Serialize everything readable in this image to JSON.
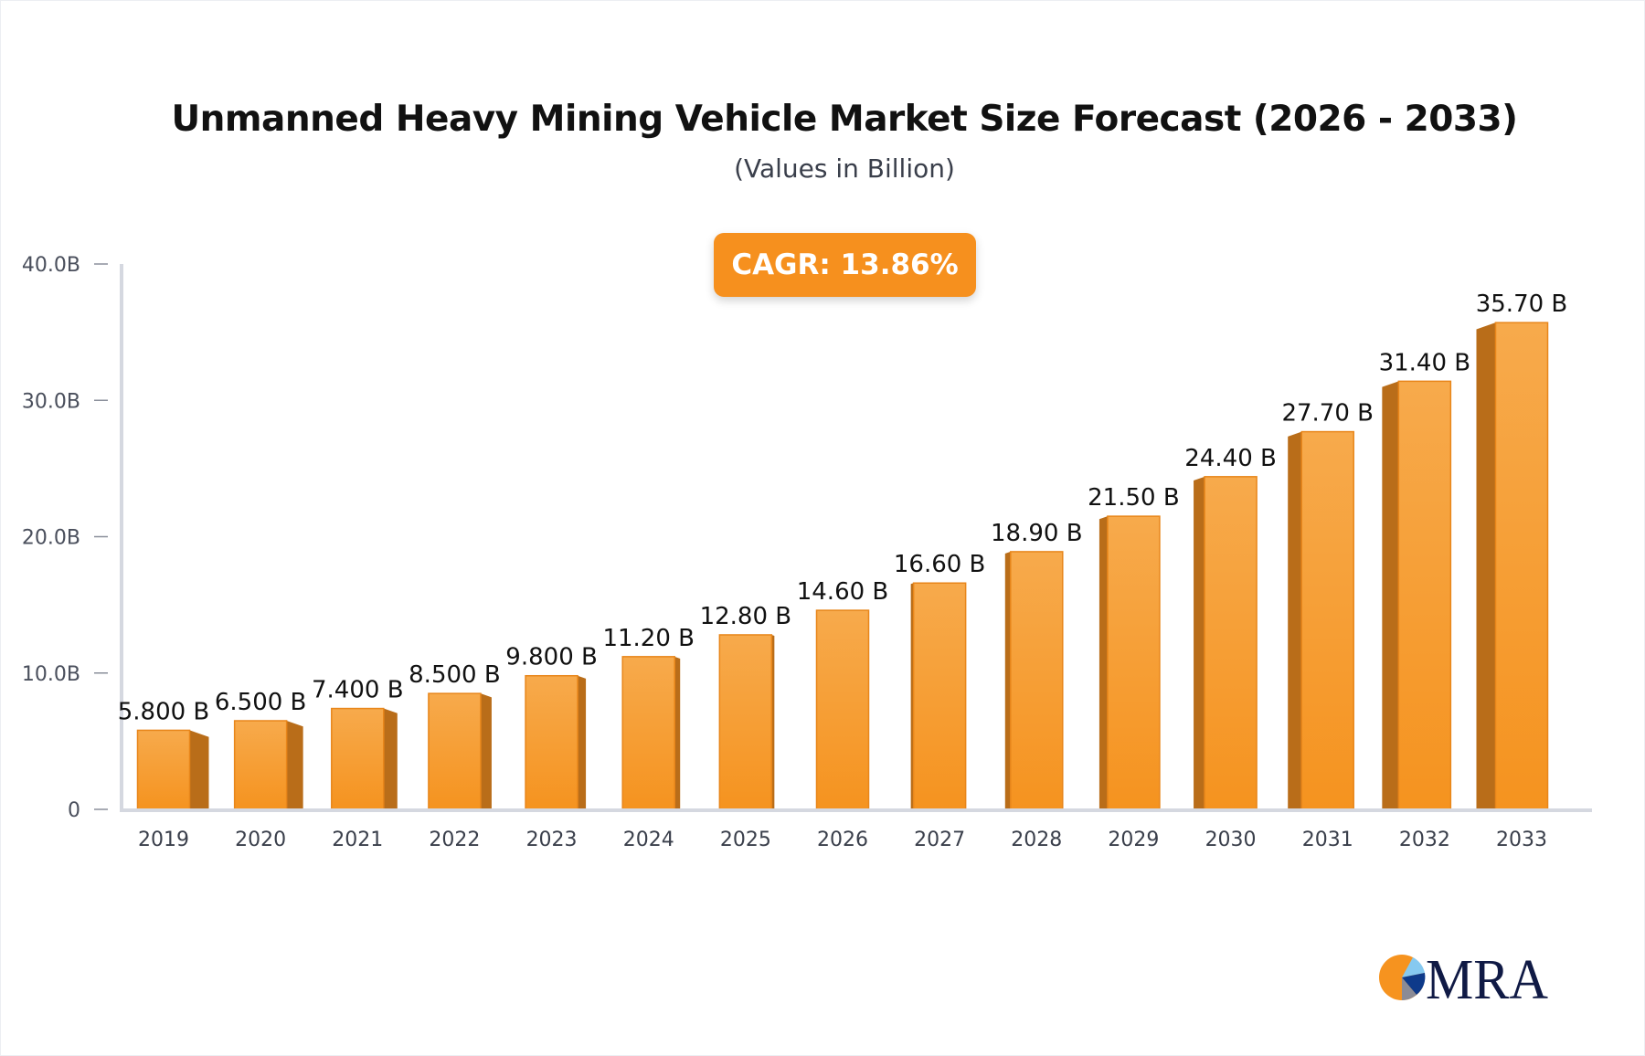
{
  "chart_data": {
    "type": "bar",
    "title": "Unmanned Heavy Mining Vehicle Market Size Forecast (2026 - 2033)",
    "subtitle": "(Values in Billion)",
    "annotation": "CAGR: 13.86%",
    "categories": [
      "2019",
      "2020",
      "2021",
      "2022",
      "2023",
      "2024",
      "2025",
      "2026",
      "2027",
      "2028",
      "2029",
      "2030",
      "2031",
      "2032",
      "2033"
    ],
    "values": [
      5.8,
      6.5,
      7.4,
      8.5,
      9.8,
      11.2,
      12.8,
      14.6,
      16.6,
      18.9,
      21.5,
      24.4,
      27.7,
      31.4,
      35.7
    ],
    "data_labels": [
      "5.800 B",
      "6.500 B",
      "7.400 B",
      "8.500 B",
      "9.800 B",
      "11.20 B",
      "12.80 B",
      "14.60 B",
      "16.60 B",
      "18.90 B",
      "21.50 B",
      "24.40 B",
      "27.70 B",
      "31.40 B",
      "35.70 B"
    ],
    "y_ticks": [
      0,
      10,
      20,
      30,
      40
    ],
    "y_tick_labels": [
      "0",
      "10.0B",
      "20.0B",
      "30.0B",
      "40.0B"
    ],
    "ylim": [
      0,
      40
    ],
    "xlabel": "",
    "ylabel": "",
    "grid": false,
    "colors": {
      "bar_top": "#f7aa4c",
      "bar_bottom": "#f5931f",
      "bar_side": "#b96d19",
      "axis": "#d5d8e0",
      "accent": "#f6901e"
    }
  },
  "logo": {
    "text": "MRA"
  }
}
